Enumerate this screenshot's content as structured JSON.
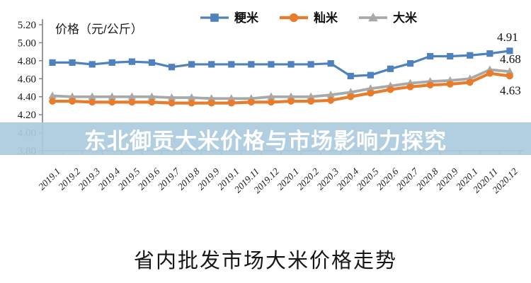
{
  "banner": {
    "title": "东北御贡大米价格与市场影响力探究",
    "bg_color": "#aacbdd",
    "bg_opacity": 0.92,
    "text_color": "#ffffff"
  },
  "caption": {
    "text": "省内批发市场大米价格走势"
  },
  "chart_data": {
    "type": "line",
    "title": "",
    "axis_title": "价格（元/公斤）",
    "xlabel": "",
    "ylabel": "价格（元/公斤）",
    "ylim": [
      3.8,
      5.2
    ],
    "y_tick_step": 0.2,
    "y_ticks": [
      "5.20",
      "5.00",
      "4.80",
      "4.60",
      "4.40",
      "4.20",
      "4.00",
      "3.80"
    ],
    "grid": false,
    "legend_position": "top",
    "axis_color": "#7f7f7f",
    "text_color": "#1a1a1a",
    "categories": [
      "2019.1",
      "2019.2",
      "2019.3",
      "2019.4",
      "2019.5",
      "2019.6",
      "2019.7",
      "2019.8",
      "2019.9",
      "2019.1",
      "2019.11",
      "2019.12",
      "2020.1",
      "2020.2",
      "2020.3",
      "2020.4",
      "2020.5",
      "2020.6",
      "2020.7",
      "2020.8",
      "2020.9",
      "2020.1",
      "2020.11",
      "2020.12"
    ],
    "series": [
      {
        "name": "粳米",
        "color": "#4f81bd",
        "marker": "square",
        "end_label": "4.91",
        "values": [
          4.78,
          4.78,
          4.76,
          4.78,
          4.79,
          4.78,
          4.73,
          4.76,
          4.76,
          4.76,
          4.76,
          4.76,
          4.76,
          4.76,
          4.77,
          4.63,
          4.64,
          4.71,
          4.77,
          4.85,
          4.85,
          4.86,
          4.88,
          4.91
        ]
      },
      {
        "name": "籼米",
        "color": "#e87c2d",
        "marker": "circle",
        "end_label": "4.63",
        "values": [
          4.35,
          4.35,
          4.34,
          4.34,
          4.34,
          4.34,
          4.33,
          4.33,
          4.33,
          4.33,
          4.34,
          4.34,
          4.35,
          4.35,
          4.36,
          4.4,
          4.44,
          4.48,
          4.51,
          4.53,
          4.54,
          4.56,
          4.66,
          4.63
        ]
      },
      {
        "name": "大米",
        "color": "#a8a8a8",
        "marker": "triangle",
        "end_label": "4.68",
        "values": [
          4.41,
          4.4,
          4.4,
          4.4,
          4.4,
          4.4,
          4.39,
          4.39,
          4.38,
          4.38,
          4.38,
          4.4,
          4.4,
          4.4,
          4.42,
          4.45,
          4.49,
          4.52,
          4.55,
          4.57,
          4.58,
          4.6,
          4.7,
          4.68
        ]
      }
    ]
  }
}
